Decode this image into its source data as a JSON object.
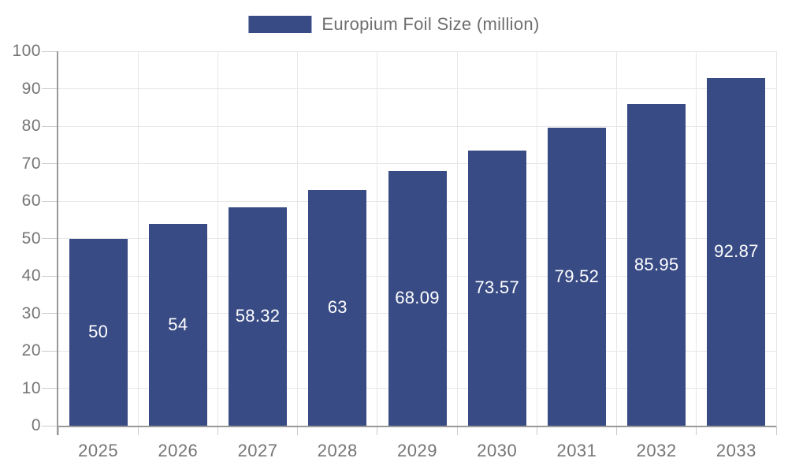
{
  "chart_data": {
    "type": "bar",
    "title": "Europium Foil Size (million)",
    "categories": [
      "2025",
      "2026",
      "2027",
      "2028",
      "2029",
      "2030",
      "2031",
      "2032",
      "2033"
    ],
    "values": [
      50,
      54,
      58.32,
      63,
      68.09,
      73.57,
      79.52,
      85.95,
      92.87
    ],
    "xlabel": "",
    "ylabel": "",
    "ylim": [
      0,
      100
    ],
    "ytick_interval": 10,
    "ytick_labels": [
      "0",
      "10",
      "20",
      "30",
      "40",
      "50",
      "60",
      "70",
      "80",
      "90",
      "100"
    ],
    "grid": true,
    "legend_position": "top",
    "value_labels_inside_bars": true
  },
  "colors": {
    "bar": "#384B85",
    "grid": "#e7e7e7",
    "axis_line": "#999999",
    "tick": "#cccccc",
    "axis_text": "#757575",
    "legend_text": "#6e6e6e",
    "value_text": "#ffffff",
    "background": "#ffffff"
  }
}
